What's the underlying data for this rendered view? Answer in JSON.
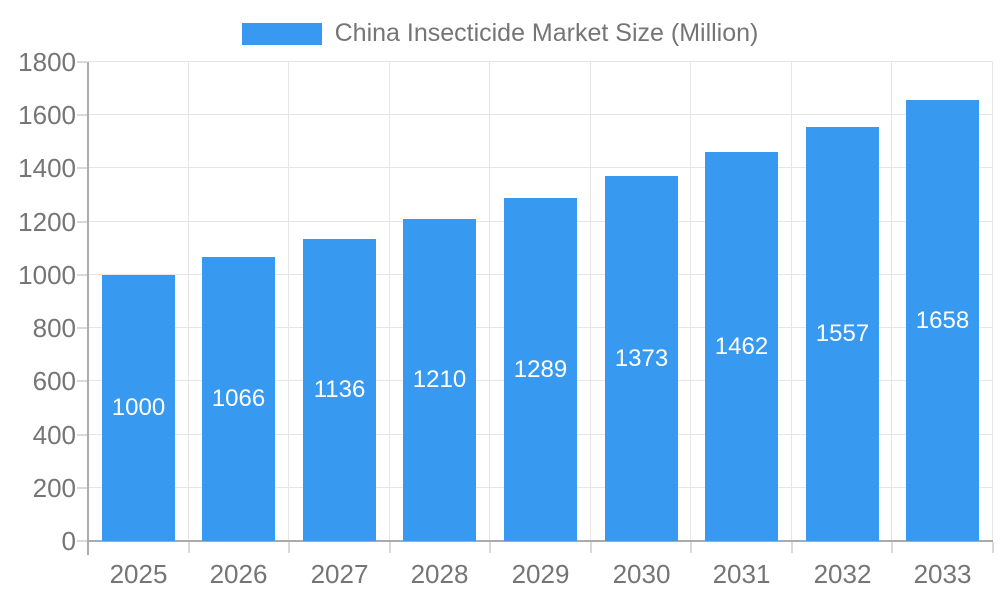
{
  "chart_data": {
    "type": "bar",
    "title": "China Insecticide Market Size (Million)",
    "categories": [
      "2025",
      "2026",
      "2027",
      "2028",
      "2029",
      "2030",
      "2031",
      "2032",
      "2033"
    ],
    "series": [
      {
        "name": "China Insecticide Market Size (Million)",
        "values": [
          1000,
          1066,
          1136,
          1210,
          1289,
          1373,
          1462,
          1557,
          1658
        ]
      }
    ],
    "bar_labels_shown": true,
    "xlabel": "",
    "ylabel": "",
    "ylim": [
      0,
      1800
    ],
    "ytick_step": 200,
    "yticks": [
      0,
      200,
      400,
      600,
      800,
      1000,
      1200,
      1400,
      1600,
      1800
    ],
    "grid": "horizontal-and-vertical",
    "legend_position": "top-center",
    "colors": {
      "bar": "#3899f0",
      "bar_label": "#ffffff",
      "axis_label": "#757575",
      "grid_line": "#e6e6e6",
      "axis_line": "#ababab",
      "tick": "#d9d9d9",
      "background": "#ffffff"
    }
  }
}
